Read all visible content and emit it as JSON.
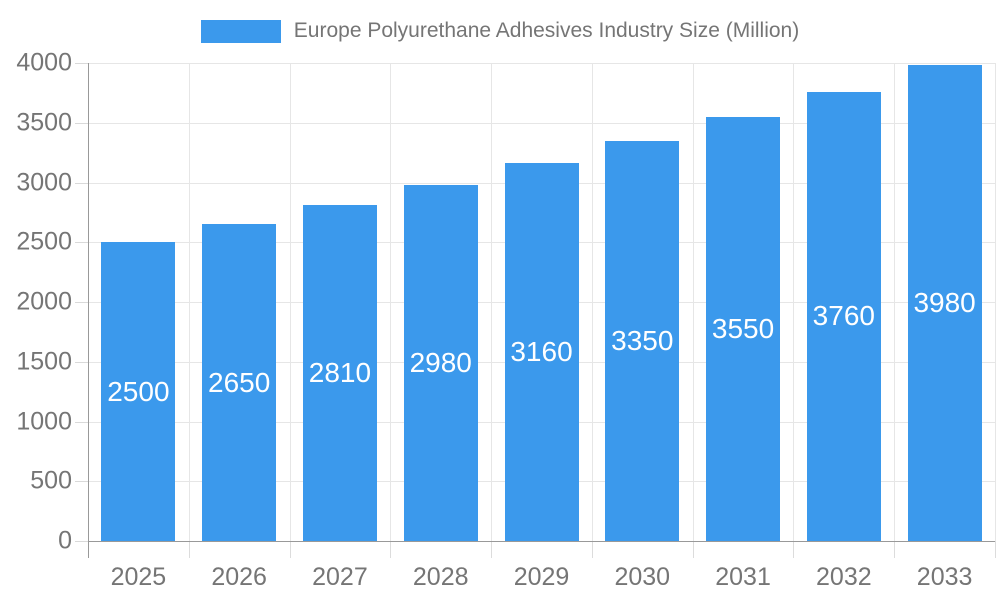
{
  "legend": {
    "label": "Europe Polyurethane Adhesives Industry Size (Million)"
  },
  "colors": {
    "bar": "#3B99EC",
    "axis_text": "#757575",
    "grid_line": "#e6e6e6",
    "axis_line": "#999999",
    "bar_label_text": "#ffffff",
    "background": "#ffffff"
  },
  "chart_data": {
    "type": "bar",
    "title": "Europe Polyurethane Adhesives Industry Size (Million)",
    "categories": [
      "2025",
      "2026",
      "2027",
      "2028",
      "2029",
      "2030",
      "2031",
      "2032",
      "2033"
    ],
    "values": [
      2500,
      2650,
      2810,
      2980,
      3160,
      3350,
      3550,
      3760,
      3980
    ],
    "xlabel": "",
    "ylabel": "",
    "ylim": [
      0,
      4000
    ],
    "ytick_step": 500,
    "yticks": [
      0,
      500,
      1000,
      1500,
      2000,
      2500,
      3000,
      3500,
      4000
    ],
    "grid": true,
    "legend_position": "top-center",
    "value_label_position": "inside-center"
  }
}
